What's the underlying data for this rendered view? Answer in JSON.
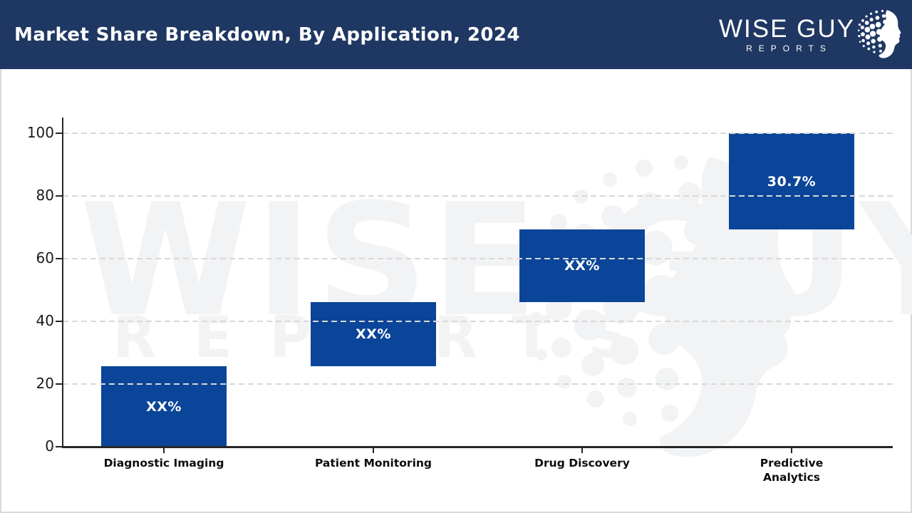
{
  "header": {
    "title": "Market Share Breakdown, By Application, 2024",
    "logo": {
      "name": "WISE GUY",
      "reports": "REPORTS"
    }
  },
  "watermark": {
    "name": "WISE GUY",
    "reports": "REPORTS"
  },
  "colors": {
    "header_bg": "#1f3763",
    "bar": "#0b4599",
    "grid": "#d8d8d8",
    "axis": "#262626",
    "tick_label": "#1a1a1a",
    "category_label": "#0d0d0d",
    "bar_label": "#ffffff",
    "watermark": "#f2f3f5",
    "frame_border": "#d9d9d9",
    "background": "#ffffff"
  },
  "chart_data": {
    "type": "bar",
    "subtype": "waterfall-floating-bars",
    "title": "Market Share Breakdown, By Application, 2024",
    "categories": [
      "Diagnostic Imaging",
      "Patient Monitoring",
      "Drug Discovery",
      "Predictive Analytics"
    ],
    "category_display_lines": [
      [
        "Diagnostic Imaging"
      ],
      [
        "Patient Monitoring"
      ],
      [
        "Drug Discovery"
      ],
      [
        "Predictive",
        "Analytics"
      ]
    ],
    "segments": [
      {
        "category": "Diagnostic Imaging",
        "start": 0,
        "end": 25.6,
        "label": "XX%"
      },
      {
        "category": "Patient Monitoring",
        "start": 25.6,
        "end": 46.2,
        "label": "XX%"
      },
      {
        "category": "Drug Discovery",
        "start": 46.2,
        "end": 69.3,
        "label": "XX%"
      },
      {
        "category": "Predictive Analytics",
        "start": 69.3,
        "end": 100,
        "label": "30.7%",
        "value": 30.7
      }
    ],
    "xlabel": "",
    "ylabel": "",
    "ylim": [
      0,
      100
    ],
    "yticks": [
      0,
      20,
      40,
      60,
      80,
      100
    ],
    "grid": "horizontal-dashed",
    "legend": "none"
  }
}
